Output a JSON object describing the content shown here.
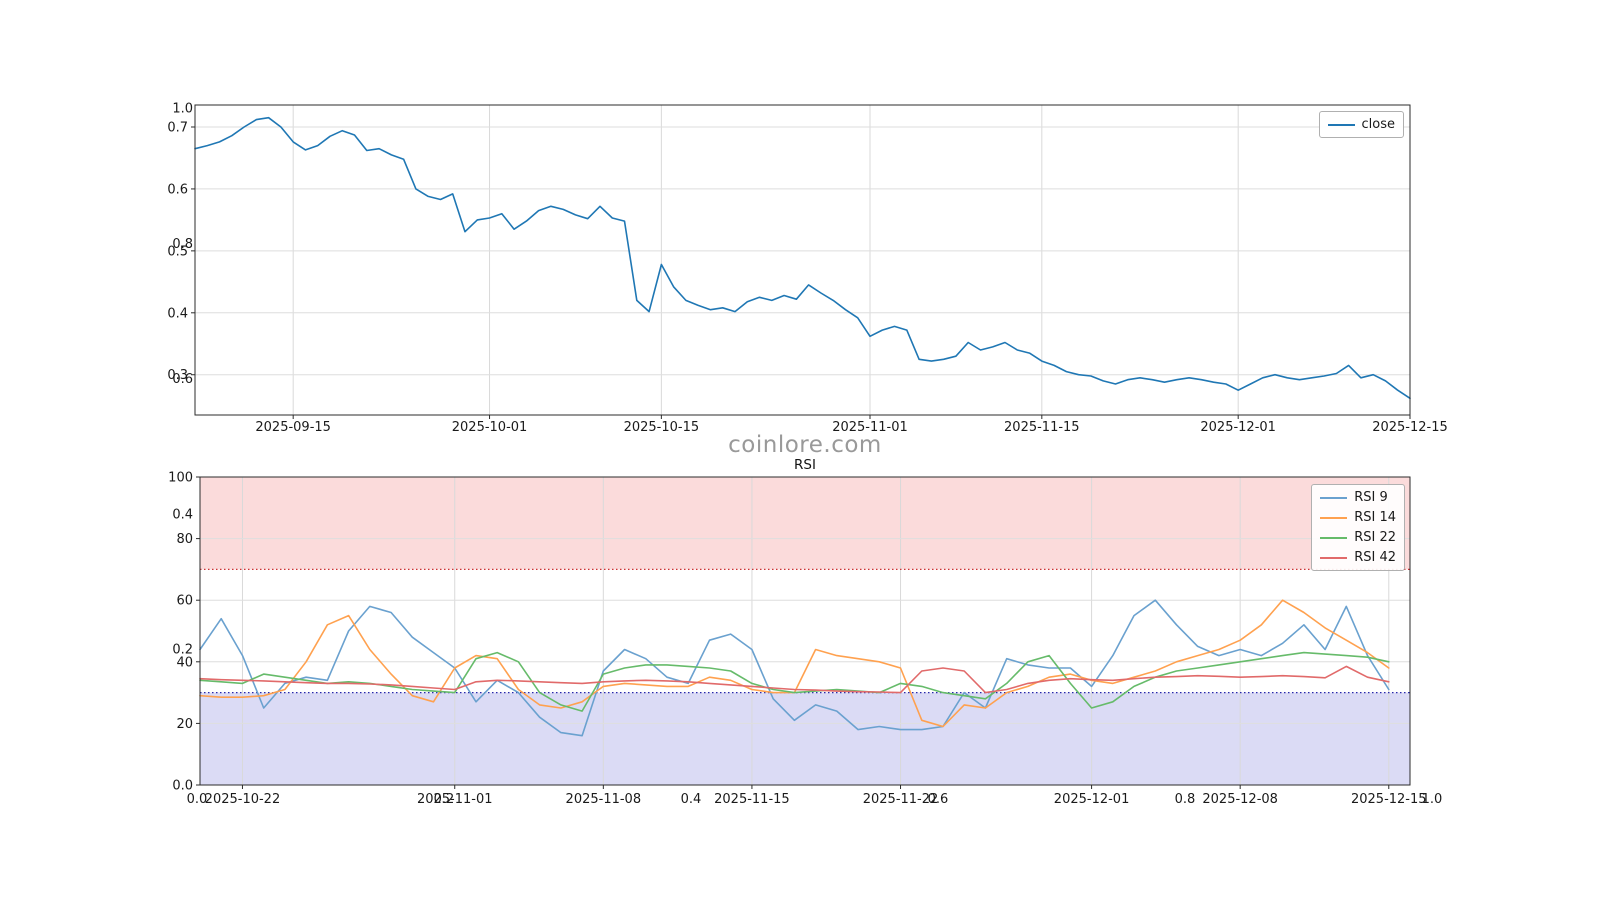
{
  "watermark": "coinlore.com",
  "chart_data": [
    {
      "type": "line",
      "name": "price-chart",
      "title": "",
      "xlabel": "",
      "ylabel": "",
      "xlim": [
        "2025-09-07",
        "2025-12-15"
      ],
      "ylim": [
        0.235,
        0.7355
      ],
      "grid": true,
      "legend_position": "upper right",
      "x_ticks": [
        "2025-09-15",
        "2025-10-01",
        "2025-10-15",
        "2025-11-01",
        "2025-11-15",
        "2025-12-01",
        "2025-12-15"
      ],
      "y_ticks": [
        {
          "label": "0.7",
          "value": 0.7
        },
        {
          "label": "0.6",
          "value": 0.6
        },
        {
          "label": "0.5",
          "value": 0.5
        },
        {
          "label": "0.4",
          "value": 0.4
        },
        {
          "label": "0.3",
          "value": 0.3
        }
      ],
      "series": [
        {
          "name": "close",
          "color": "#1f77b4",
          "start": "2025-09-07",
          "interval": "1d",
          "values": [
            0.665,
            0.67,
            0.676,
            0.686,
            0.7,
            0.712,
            0.715,
            0.7,
            0.676,
            0.663,
            0.67,
            0.685,
            0.694,
            0.687,
            0.662,
            0.665,
            0.655,
            0.648,
            0.6,
            0.588,
            0.583,
            0.592,
            0.531,
            0.55,
            0.553,
            0.56,
            0.535,
            0.548,
            0.565,
            0.572,
            0.567,
            0.558,
            0.552,
            0.572,
            0.553,
            0.548,
            0.42,
            0.402,
            0.478,
            0.442,
            0.42,
            0.412,
            0.405,
            0.408,
            0.402,
            0.418,
            0.425,
            0.42,
            0.428,
            0.422,
            0.445,
            0.432,
            0.42,
            0.405,
            0.392,
            0.362,
            0.372,
            0.378,
            0.372,
            0.325,
            0.322,
            0.325,
            0.33,
            0.352,
            0.34,
            0.345,
            0.352,
            0.34,
            0.335,
            0.322,
            0.315,
            0.305,
            0.3,
            0.298,
            0.29,
            0.285,
            0.292,
            0.295,
            0.292,
            0.288,
            0.292,
            0.295,
            0.292,
            0.288,
            0.285,
            0.275,
            0.285,
            0.295,
            0.3,
            0.295,
            0.292,
            0.295,
            0.298,
            0.302,
            0.315,
            0.295,
            0.3,
            0.29,
            0.275,
            0.262
          ]
        }
      ]
    },
    {
      "type": "line",
      "name": "rsi-chart",
      "title": "RSI",
      "xlabel": "",
      "ylabel": "",
      "xlim": [
        "2025-10-20",
        "2025-12-16"
      ],
      "ylim": [
        0,
        100
      ],
      "grid": true,
      "legend_position": "upper right",
      "x_ticks": [
        "2025-10-22",
        "2025-11-01",
        "2025-11-08",
        "2025-11-15",
        "2025-11-22",
        "2025-12-01",
        "2025-12-08",
        "2025-12-15"
      ],
      "y_ticks": [
        {
          "label": "100",
          "value": 100
        },
        {
          "label": "80",
          "value": 80
        },
        {
          "label": "60",
          "value": 60
        },
        {
          "label": "40",
          "value": 40
        },
        {
          "label": "20",
          "value": 20
        },
        {
          "label": "0.0",
          "value": 0
        }
      ],
      "bands": [
        {
          "name": "overbought-band",
          "from": 70,
          "to": 100,
          "color": "#fbdbdb"
        },
        {
          "name": "oversold-band",
          "from": 0,
          "to": 30,
          "color": "#dbdbf5"
        }
      ],
      "hlines": [
        {
          "name": "overbought-line",
          "value": 70,
          "color": "#cb3234",
          "style": "dotted"
        },
        {
          "name": "oversold-line",
          "value": 30,
          "color": "#2828aa",
          "style": "dotted"
        }
      ],
      "series": [
        {
          "name": "RSI 9",
          "color": "#6aa1cf",
          "start": "2025-10-20",
          "interval": "1d",
          "values": [
            44,
            54,
            42,
            25,
            33,
            35,
            34,
            50,
            58,
            56,
            48,
            43,
            38,
            27,
            34,
            30,
            22,
            17,
            16,
            37,
            44,
            41,
            35,
            33,
            47,
            49,
            44,
            28,
            21,
            26,
            24,
            18,
            19,
            18,
            18,
            19,
            30,
            25,
            41,
            39,
            38,
            38,
            32,
            42,
            55,
            60,
            52,
            45,
            42,
            44,
            42,
            46,
            52,
            44,
            58,
            42,
            31
          ]
        },
        {
          "name": "RSI 14",
          "color": "#ffa14f",
          "start": "2025-10-20",
          "interval": "1d",
          "values": [
            29,
            28.5,
            28.5,
            29,
            31,
            40,
            52,
            55,
            44,
            36,
            29,
            27,
            38,
            42,
            41,
            31,
            26,
            25,
            27,
            32,
            33,
            32.5,
            32,
            32,
            35,
            34,
            31,
            30,
            30,
            44,
            42,
            41,
            40,
            38,
            21,
            19,
            26,
            25,
            30,
            32,
            35,
            36,
            34,
            33,
            35,
            37,
            40,
            42,
            44,
            47,
            52,
            60,
            56,
            51,
            47,
            43,
            38
          ]
        },
        {
          "name": "RSI 22",
          "color": "#66bb6a",
          "start": "2025-10-20",
          "interval": "1d",
          "values": [
            34,
            33.5,
            33,
            36,
            35,
            34,
            33,
            33.5,
            33,
            32,
            31,
            30.5,
            30,
            41,
            43,
            40,
            30,
            26,
            24,
            36,
            38,
            39,
            39,
            38.5,
            38,
            37,
            33,
            31,
            30,
            30.5,
            31,
            30.5,
            30,
            33,
            32,
            30,
            29,
            28,
            33,
            40,
            42,
            33,
            25,
            27,
            32,
            35,
            37,
            38,
            39,
            40,
            41,
            42,
            43,
            42.5,
            42,
            41.5,
            40
          ]
        },
        {
          "name": "RSI 42",
          "color": "#e16a6a",
          "start": "2025-10-20",
          "interval": "1d",
          "values": [
            34.5,
            34.2,
            34,
            33.8,
            33.5,
            33.2,
            33,
            33,
            32.8,
            32.5,
            32,
            31.5,
            31,
            33.5,
            34,
            33.8,
            33.5,
            33.2,
            33,
            33.5,
            33.8,
            34,
            33.8,
            33.5,
            33,
            32.5,
            32,
            31.5,
            31,
            30.8,
            30.5,
            30.3,
            30.2,
            30,
            37,
            38,
            37,
            30,
            31,
            33,
            34,
            34.5,
            34.2,
            34,
            34.5,
            35,
            35.2,
            35.5,
            35.3,
            35,
            35.2,
            35.5,
            35.2,
            34.8,
            38.5,
            35,
            33.5
          ]
        }
      ]
    }
  ],
  "overlay_axis": {
    "y_ticks": [
      "1.0",
      "0.8",
      "0.6",
      "0.4",
      "0.2"
    ],
    "x_ticks": [
      "0.0",
      "0.2",
      "0.4",
      "0.6",
      "0.8",
      "1.0"
    ]
  }
}
